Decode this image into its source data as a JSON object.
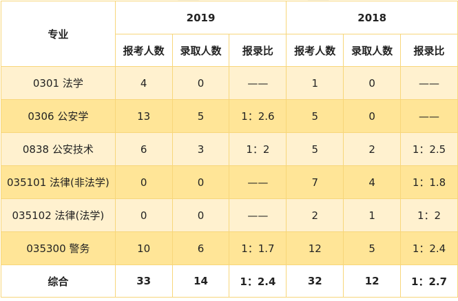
{
  "table": {
    "header": {
      "major": "专业",
      "years": [
        "2019",
        "2018"
      ],
      "subcolumns": [
        "报考人数",
        "录取人数",
        "报录比",
        "报考人数",
        "录取人数",
        "报录比"
      ]
    },
    "rows": [
      {
        "major": "0301 法学",
        "y2019_applied": "4",
        "y2019_admitted": "0",
        "y2019_ratio": "——",
        "y2018_applied": "1",
        "y2018_admitted": "0",
        "y2018_ratio": "——"
      },
      {
        "major": "0306 公安学",
        "y2019_applied": "13",
        "y2019_admitted": "5",
        "y2019_ratio": "1：2.6",
        "y2018_applied": "5",
        "y2018_admitted": "0",
        "y2018_ratio": "——"
      },
      {
        "major": "0838 公安技术",
        "y2019_applied": "6",
        "y2019_admitted": "3",
        "y2019_ratio": "1：2",
        "y2018_applied": "5",
        "y2018_admitted": "2",
        "y2018_ratio": "1：2.5"
      },
      {
        "major": "035101 法律(非法学)",
        "y2019_applied": "0",
        "y2019_admitted": "0",
        "y2019_ratio": "——",
        "y2018_applied": "7",
        "y2018_admitted": "4",
        "y2018_ratio": "1：1.8"
      },
      {
        "major": "035102 法律(法学)",
        "y2019_applied": "0",
        "y2019_admitted": "0",
        "y2019_ratio": "——",
        "y2018_applied": "2",
        "y2018_admitted": "1",
        "y2018_ratio": "1：2"
      },
      {
        "major": "035300 警务",
        "y2019_applied": "10",
        "y2019_admitted": "6",
        "y2019_ratio": "1：1.7",
        "y2018_applied": "12",
        "y2018_admitted": "5",
        "y2018_ratio": "1：2.4"
      }
    ],
    "total": {
      "major": "综合",
      "y2019_applied": "33",
      "y2019_admitted": "14",
      "y2019_ratio": "1：2.4",
      "y2018_applied": "32",
      "y2018_admitted": "12",
      "y2018_ratio": "1：2.7"
    }
  },
  "colors": {
    "border": "#f7d67a",
    "row_light": "#fff1cf",
    "row_dark": "#ffe597",
    "header_bg": "#ffffff"
  }
}
